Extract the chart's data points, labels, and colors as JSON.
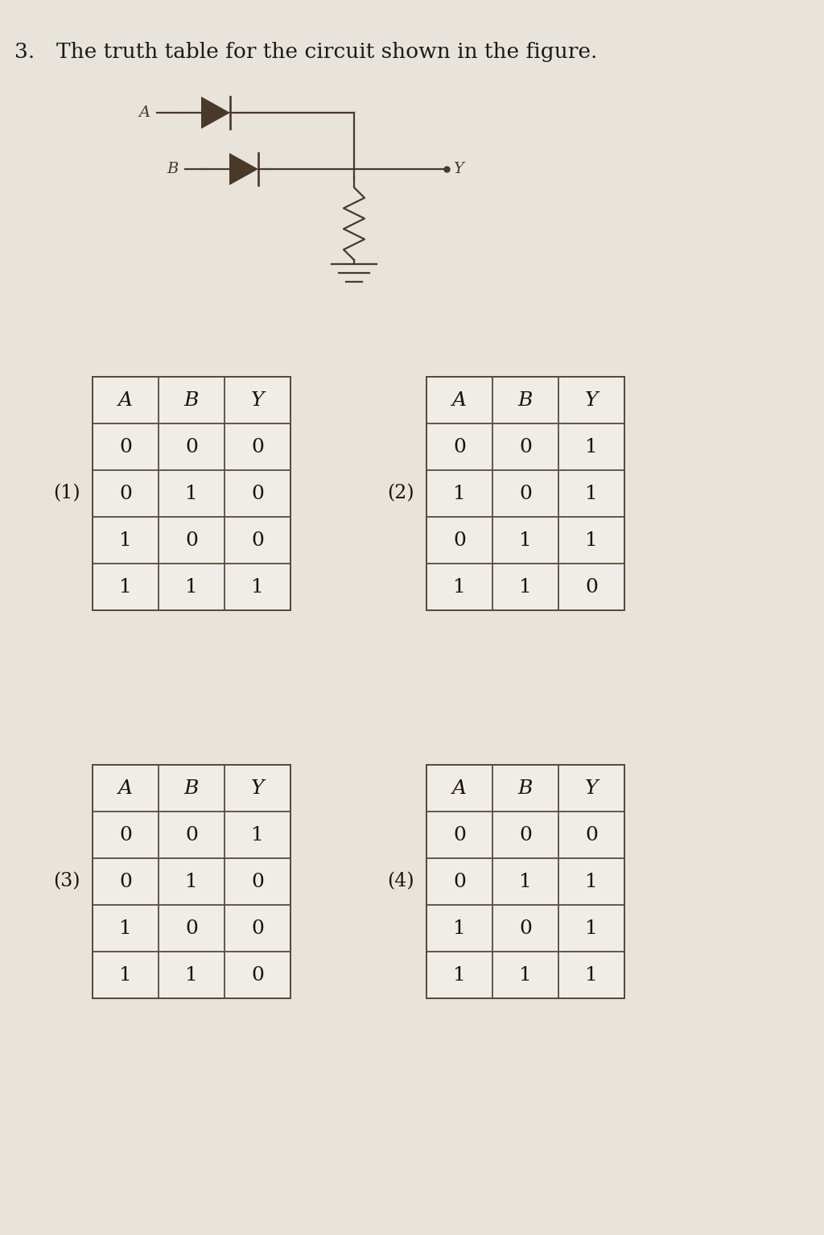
{
  "title_num": "3.",
  "title_text": "The truth table for the circuit shown in the figure.",
  "background_color": "#e8e4dc",
  "table_bg": "#f0ede8",
  "border_color": "#5a4a3a",
  "line_color": "#4a3828",
  "tables": [
    {
      "label": "(1)",
      "headers": [
        "A",
        "B",
        "Y"
      ],
      "rows": [
        [
          "0",
          "0",
          "0"
        ],
        [
          "0",
          "1",
          "0"
        ],
        [
          "1",
          "0",
          "0"
        ],
        [
          "1",
          "1",
          "1"
        ]
      ]
    },
    {
      "label": "(2)",
      "headers": [
        "A",
        "B",
        "Y"
      ],
      "rows": [
        [
          "0",
          "0",
          "1"
        ],
        [
          "1",
          "0",
          "1"
        ],
        [
          "0",
          "1",
          "1"
        ],
        [
          "1",
          "1",
          "0"
        ]
      ]
    },
    {
      "label": "(3)",
      "headers": [
        "A",
        "B",
        "Y"
      ],
      "rows": [
        [
          "0",
          "0",
          "1"
        ],
        [
          "0",
          "1",
          "0"
        ],
        [
          "1",
          "0",
          "0"
        ],
        [
          "1",
          "1",
          "0"
        ]
      ]
    },
    {
      "label": "(4)",
      "headers": [
        "A",
        "B",
        "Y"
      ],
      "rows": [
        [
          "0",
          "0",
          "0"
        ],
        [
          "0",
          "1",
          "1"
        ],
        [
          "1",
          "0",
          "1"
        ],
        [
          "1",
          "1",
          "1"
        ]
      ]
    }
  ]
}
